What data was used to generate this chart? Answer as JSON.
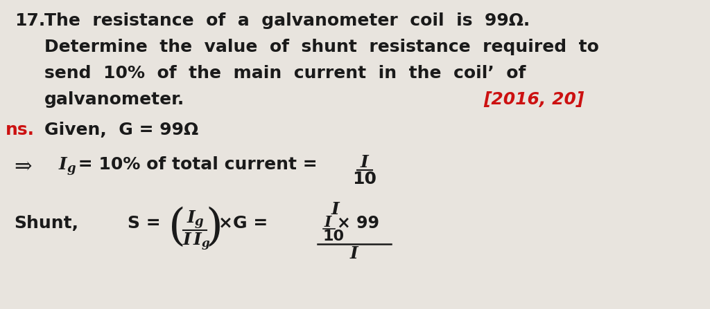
{
  "background_color": "#e8e4de",
  "fig_width": 10.24,
  "fig_height": 4.47,
  "dpi": 100,
  "text_color": "#1a1a1a",
  "red_color": "#cc1111",
  "q_num": "17.",
  "q_line1": "The  resistance  of  a  galvanometer  coil  is  99Ω.",
  "q_line2": "Determine  the  value  of  shunt  resistance  required  to",
  "q_line3": "send  10%  of  the  main  current  in  the  coil’  of",
  "q_line4": "galvanometer.",
  "year_tag": "[2016, 20]",
  "ans_label": "ns.",
  "given_line": "Given,  G = 99Ω",
  "arrow": "⇒",
  "ig_label": "I",
  "ig_sub": "g",
  "ig_rest": " = 10% of total current = ",
  "frac_num": "I",
  "frac_den": "10",
  "shunt_word": "Shunt,",
  "s_eq": "S = ",
  "bracket_num": "I",
  "bracket_num_sub": "g",
  "bracket_den": "I",
  "bracket_den_sub2": "I",
  "bracket_den_sub2_sub": "g",
  "times_g": "×G =",
  "rhs_top_i": "I",
  "rhs_frac_num": "I",
  "rhs_frac_den": "10",
  "rhs_times": "× 99",
  "rhs_denom": "I",
  "qfs": 18,
  "bfs": 17,
  "sfs": 13
}
